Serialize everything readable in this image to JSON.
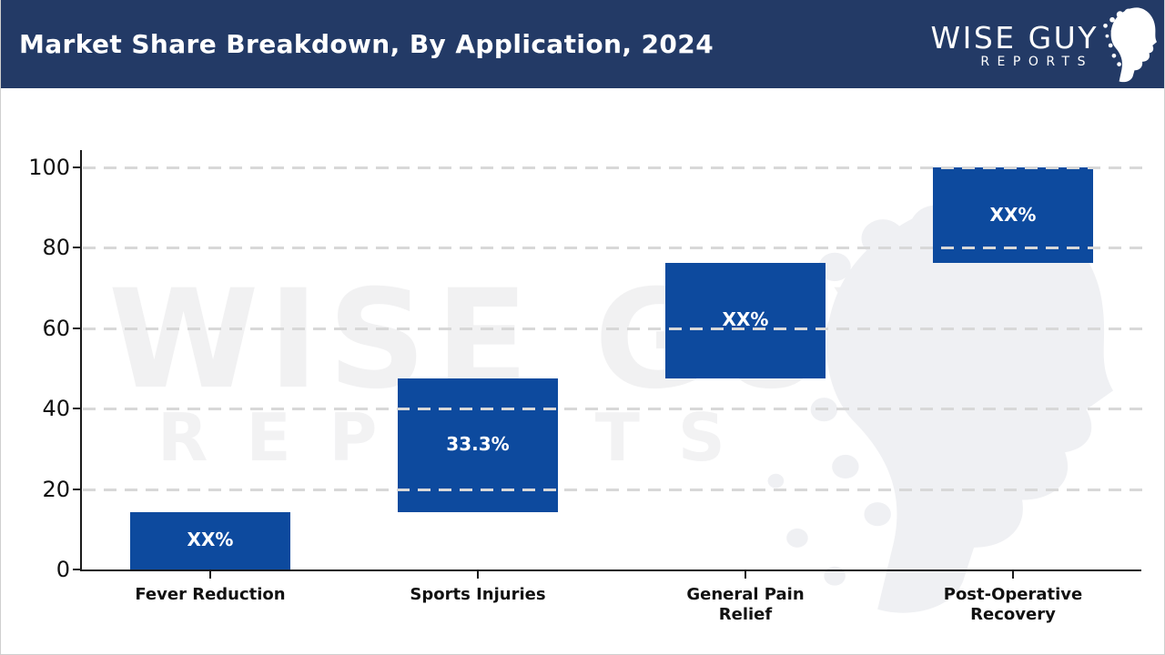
{
  "header": {
    "title": "Market Share Breakdown, By Application, 2024",
    "logo": {
      "primary": "WISE GUY",
      "secondary": "REPORTS"
    }
  },
  "watermark": {
    "primary": "WISE GUY",
    "secondary": "REPORTS"
  },
  "chart_data": {
    "type": "bar",
    "subtype": "floating-waterfall",
    "title": "Market Share Breakdown, By Application, 2024",
    "categories": [
      "Fever Reduction",
      "Sports Injuries",
      "General Pain\nRelief",
      "Post-Operative\nRecovery"
    ],
    "segments": [
      {
        "category": "Fever Reduction",
        "start": 0,
        "end": 14.3,
        "label": "XX%"
      },
      {
        "category": "Sports Injuries",
        "start": 14.3,
        "end": 47.6,
        "label": "33.3%"
      },
      {
        "category": "General Pain Relief",
        "start": 47.6,
        "end": 76.2,
        "label": "XX%"
      },
      {
        "category": "Post-Operative Recovery",
        "start": 76.2,
        "end": 100,
        "label": "XX%"
      }
    ],
    "ylim": [
      0,
      100
    ],
    "yticks": [
      0,
      20,
      40,
      60,
      80,
      100
    ],
    "grid": {
      "axis": "y",
      "style": "dashed",
      "color": "#d9d9d9"
    },
    "colors": {
      "bar": "#0d4a9e",
      "bar_label": "#ffffff",
      "axis": "#1a1a1a",
      "header_bg": "#233a66",
      "watermark": "#f1f1f2"
    }
  }
}
